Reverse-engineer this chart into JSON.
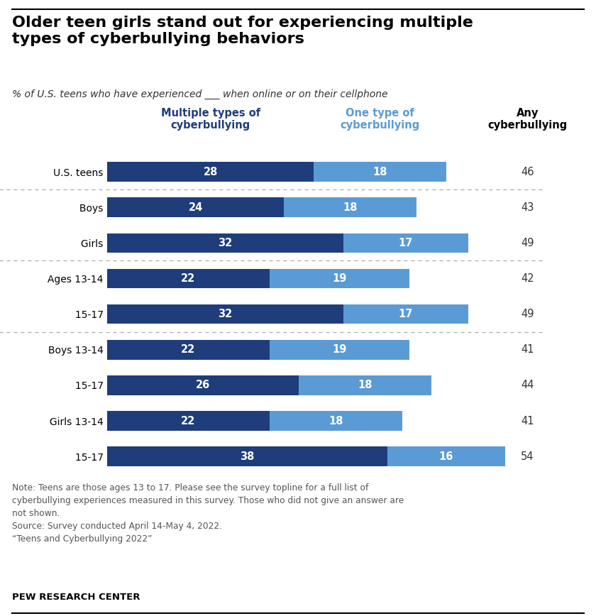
{
  "title": "Older teen girls stand out for experiencing multiple\ntypes of cyberbullying behaviors",
  "subtitle": "% of U.S. teens who have experienced ___ when online or on their cellphone",
  "col1_label": "Multiple types of\ncyberbullying",
  "col2_label": "One type of\ncyberbullying",
  "col3_label": "Any\ncyberbullying",
  "categories": [
    "U.S. teens",
    "Boys",
    "Girls",
    "Ages 13-14",
    "15-17",
    "Boys 13-14",
    "15-17",
    "Girls 13-14",
    "15-17"
  ],
  "multiple": [
    28,
    24,
    32,
    22,
    32,
    22,
    26,
    22,
    38
  ],
  "one_type": [
    18,
    18,
    17,
    19,
    17,
    19,
    18,
    18,
    16
  ],
  "any": [
    46,
    43,
    49,
    42,
    49,
    41,
    44,
    41,
    54
  ],
  "color_multiple": "#1f3d7a",
  "color_one": "#5b9bd5",
  "color_any": "#333333",
  "note_line1": "Note: Teens are those ages 13 to 17. Please see the survey topline for a full list of",
  "note_line2": "cyberbullying experiences measured in this survey. Those who did not give an answer are",
  "note_line3": "not shown.",
  "note_line4": "Source: Survey conducted April 14-May 4, 2022.",
  "note_line5": "“Teens and Cyberbullying 2022”",
  "footer": "PEW RESEARCH CENTER",
  "indent_indices": [
    1,
    2,
    3,
    4,
    5,
    6,
    7,
    8
  ],
  "divider_after": [
    0,
    2,
    4
  ]
}
